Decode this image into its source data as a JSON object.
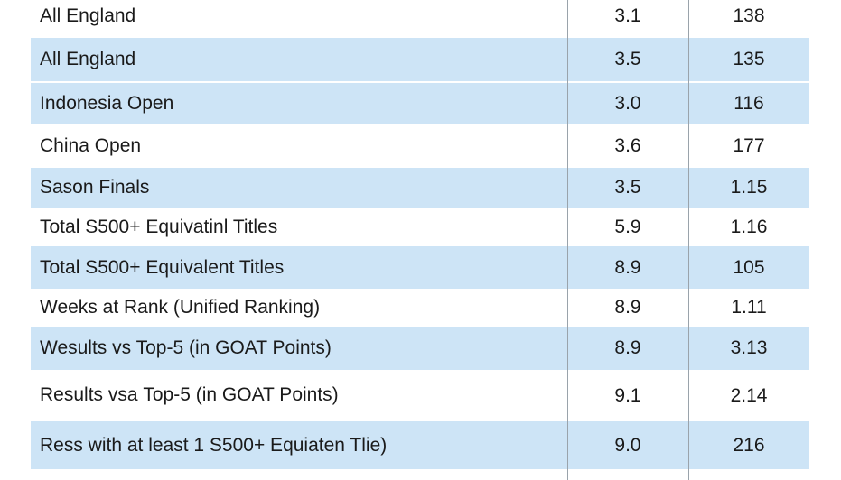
{
  "rows": [
    {
      "label": "All England",
      "v1": "3.1",
      "v2": "138",
      "shaded": false
    },
    {
      "label": "All England",
      "v1": "3.5",
      "v2": "135",
      "shaded": true
    },
    {
      "label": "Indonesia Open",
      "v1": "3.0",
      "v2": "116",
      "shaded": true
    },
    {
      "label": "China Open",
      "v1": "3.6",
      "v2": "177",
      "shaded": false
    },
    {
      "label": "Sason Finals",
      "v1": "3.5",
      "v2": "1.15",
      "shaded": true
    },
    {
      "label": "Total S500+ Equivatinl Titles",
      "v1": "5.9",
      "v2": "1.16",
      "shaded": false
    },
    {
      "label": "Total S500+ Equivalent Titles",
      "v1": "8.9",
      "v2": "105",
      "shaded": true
    },
    {
      "label": "Weeks at Rank (Unified Ranking)",
      "v1": "8.9",
      "v2": "1.11",
      "shaded": false
    },
    {
      "label": "Wesults vs Top-5 (in GOAT Points)",
      "v1": "8.9",
      "v2": "3.13",
      "shaded": true
    },
    {
      "label": "Results vsа Top-5 (in GOAT Points)",
      "v1": "9.1",
      "v2": "2.14",
      "shaded": false
    },
    {
      "label": "Ress with at least 1 S500+ Equiaten Tlie)",
      "v1": "9.0",
      "v2": "216",
      "shaded": true
    }
  ]
}
